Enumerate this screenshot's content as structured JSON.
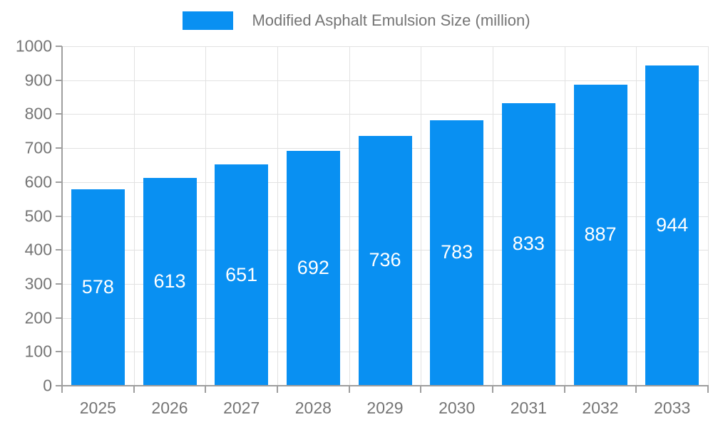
{
  "legend": {
    "label": "Modified Asphalt Emulsion Size (million)"
  },
  "chart_data": {
    "type": "bar",
    "title": "Modified Asphalt Emulsion Size (million)",
    "categories": [
      "2025",
      "2026",
      "2027",
      "2028",
      "2029",
      "2030",
      "2031",
      "2032",
      "2033"
    ],
    "values": [
      578,
      613,
      651,
      692,
      736,
      783,
      833,
      887,
      944
    ],
    "xlabel": "",
    "ylabel": "",
    "ylim": [
      0,
      1000
    ],
    "ytick_step": 100,
    "grid": true,
    "legend_position": "top",
    "value_labels": "inside-center",
    "colors": {
      "bar": "#0990F2",
      "grid": "#E2E2E2",
      "axis": "#9E9E9E",
      "axis_label": "#757575",
      "value_label": "#FFFFFF",
      "background": "#FFFFFF"
    }
  }
}
